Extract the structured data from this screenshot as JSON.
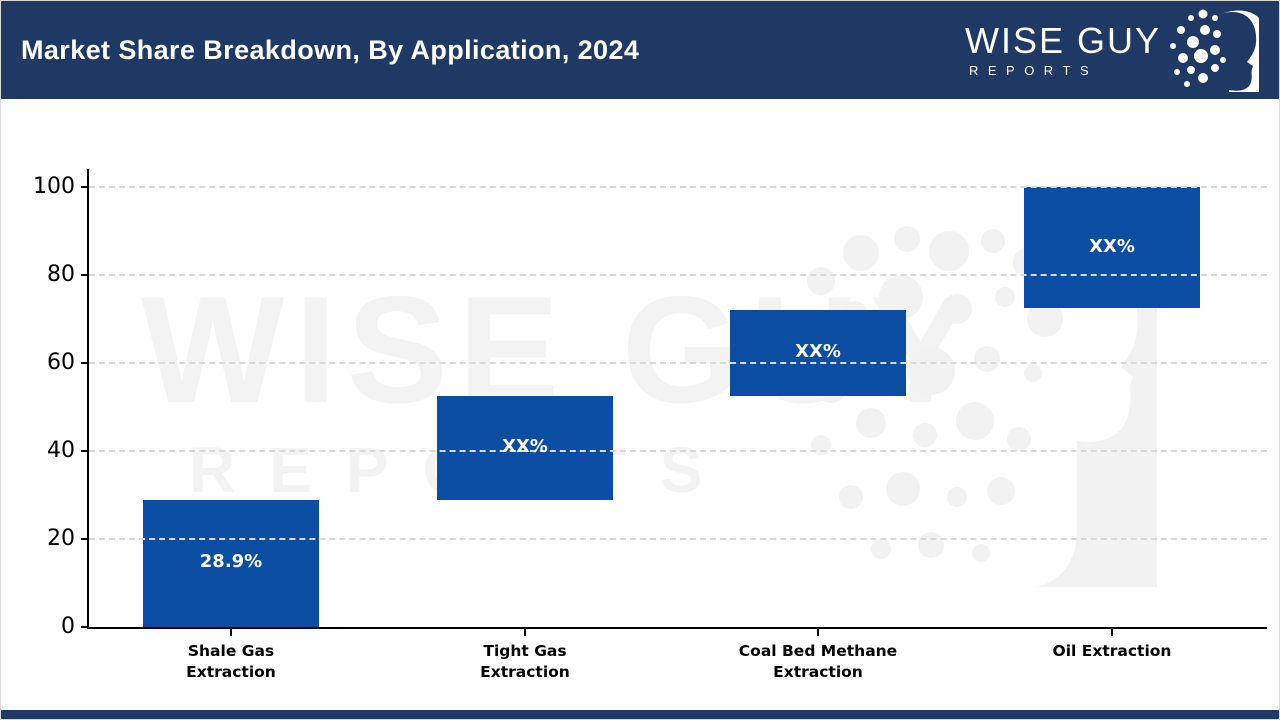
{
  "header": {
    "title": "Market Share Breakdown, By Application, 2024",
    "logo": {
      "line1": "WISE GUY",
      "line2": "REPORTS"
    }
  },
  "watermark": {
    "line1": "WISE GUY",
    "line2": "REPORTS"
  },
  "footer": {},
  "colors": {
    "header_bg": "#1f3864",
    "bar": "#0b4da2",
    "gridline": "#d9d9d9",
    "axis": "#000000",
    "bar_label_text": "#ffffff",
    "watermark": "#f3f3f3"
  },
  "chart_data": {
    "type": "bar",
    "subtype": "floating-waterfall",
    "title": "Market Share Breakdown, By Application, 2024",
    "xlabel": "",
    "ylabel": "",
    "ylim": [
      0,
      107
    ],
    "yticks": [
      0,
      20,
      40,
      60,
      80,
      100
    ],
    "grid": "horizontal-dashed",
    "legend": "none",
    "categories": [
      "Shale Gas Extraction",
      "Tight Gas Extraction",
      "Coal Bed Methane Extraction",
      "Oil Extraction"
    ],
    "category_label_lines": [
      [
        "Shale Gas",
        "Extraction"
      ],
      [
        "Tight Gas",
        "Extraction"
      ],
      [
        "Coal Bed Methane",
        "Extraction"
      ],
      [
        "Oil Extraction"
      ]
    ],
    "series": [
      {
        "category": "Shale Gas Extraction",
        "start": 0,
        "end": 28.9,
        "label": "28.9%"
      },
      {
        "category": "Tight Gas Extraction",
        "start": 28.9,
        "end": 52.5,
        "label": "XX%"
      },
      {
        "category": "Coal Bed Methane Extraction",
        "start": 52.5,
        "end": 72.0,
        "label": "XX%"
      },
      {
        "category": "Oil Extraction",
        "start": 72.5,
        "end": 100.0,
        "label": "XX%"
      }
    ]
  }
}
